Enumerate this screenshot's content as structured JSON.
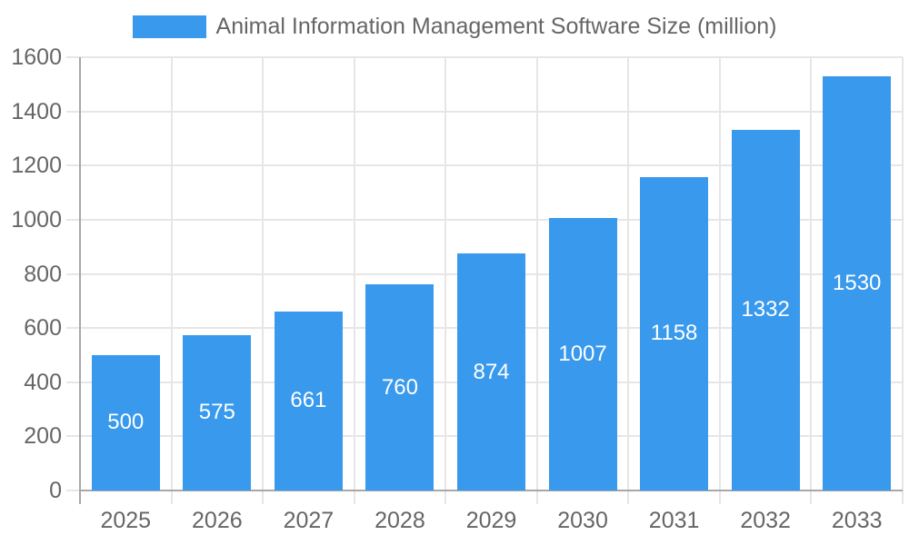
{
  "chart_data": {
    "type": "bar",
    "title": "",
    "categories": [
      "2025",
      "2026",
      "2027",
      "2028",
      "2029",
      "2030",
      "2031",
      "2032",
      "2033"
    ],
    "series": [
      {
        "name": "Animal Information Management Software Size (million)",
        "values": [
          500,
          575,
          661,
          760,
          874,
          1007,
          1158,
          1332,
          1530
        ]
      }
    ],
    "value_labels": [
      "500",
      "575",
      "661",
      "760",
      "874",
      "1007",
      "1158",
      "1332",
      "1530"
    ],
    "xlabel": "",
    "ylabel": "",
    "ylim": [
      0,
      1600
    ],
    "yticks": [
      0,
      200,
      400,
      600,
      800,
      1000,
      1200,
      1400,
      1600
    ],
    "grid": true,
    "legend_position": "top",
    "colors": {
      "bar": "#3999EC",
      "bar_label": "#FFFFFF",
      "axis_text": "#666666",
      "grid_line": "#E6E6E6",
      "axis_line": "#A8A8A8",
      "background": "#FFFFFF"
    }
  }
}
